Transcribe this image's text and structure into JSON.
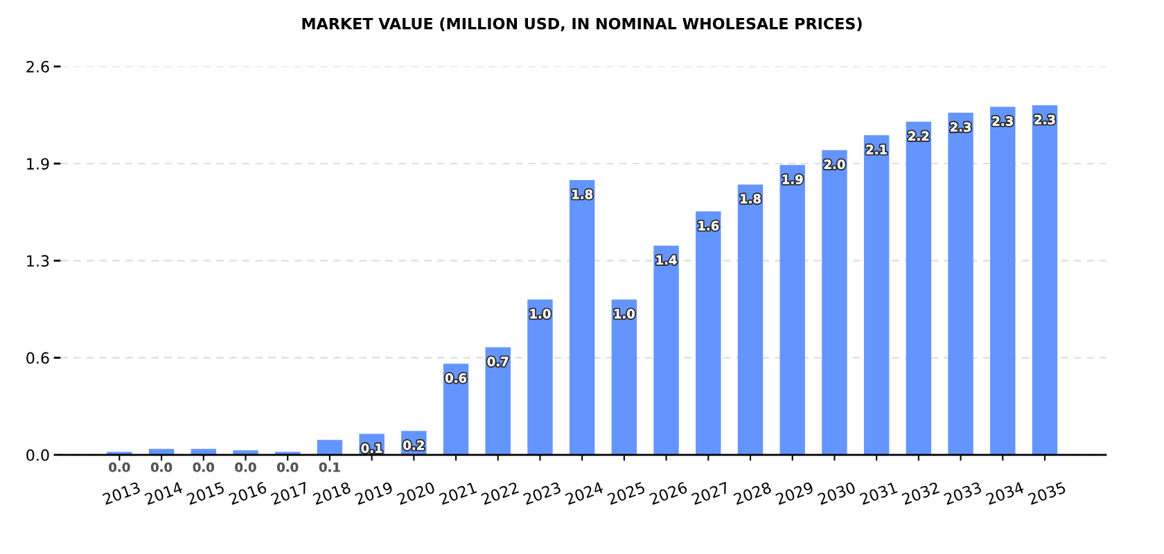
{
  "chart_data": {
    "type": "bar",
    "title": "MARKET VALUE (MILLION USD, IN NOMINAL WHOLESALE PRICES)",
    "categories": [
      "2013",
      "2014",
      "2015",
      "2016",
      "2017",
      "2018",
      "2019",
      "2020",
      "2021",
      "2022",
      "2023",
      "2024",
      "2025",
      "2026",
      "2027",
      "2028",
      "2029",
      "2030",
      "2031",
      "2032",
      "2033",
      "2034",
      "2035"
    ],
    "values": [
      0.02,
      0.04,
      0.04,
      0.03,
      0.02,
      0.1,
      0.14,
      0.16,
      0.61,
      0.72,
      1.04,
      1.84,
      1.04,
      1.4,
      1.63,
      1.81,
      1.94,
      2.04,
      2.14,
      2.23,
      2.29,
      2.33,
      2.34
    ],
    "value_labels": [
      "0.0",
      "0.0",
      "0.0",
      "0.0",
      "0.0",
      "0.1",
      "0.1",
      "0.2",
      "0.6",
      "0.7",
      "1.0",
      "1.8",
      "1.0",
      "1.4",
      "1.6",
      "1.8",
      "1.9",
      "2.0",
      "2.1",
      "2.2",
      "2.3",
      "2.3",
      "2.3"
    ],
    "color": "#6495ff",
    "ylim": [
      0,
      2.6
    ],
    "yticks": [
      {
        "value": 0,
        "label": "0.0"
      },
      {
        "value": 0.65,
        "label": "0.6"
      },
      1.3,
      {
        "value": 1.95,
        "label": "1.9"
      },
      2.6
    ],
    "grid": "y"
  }
}
